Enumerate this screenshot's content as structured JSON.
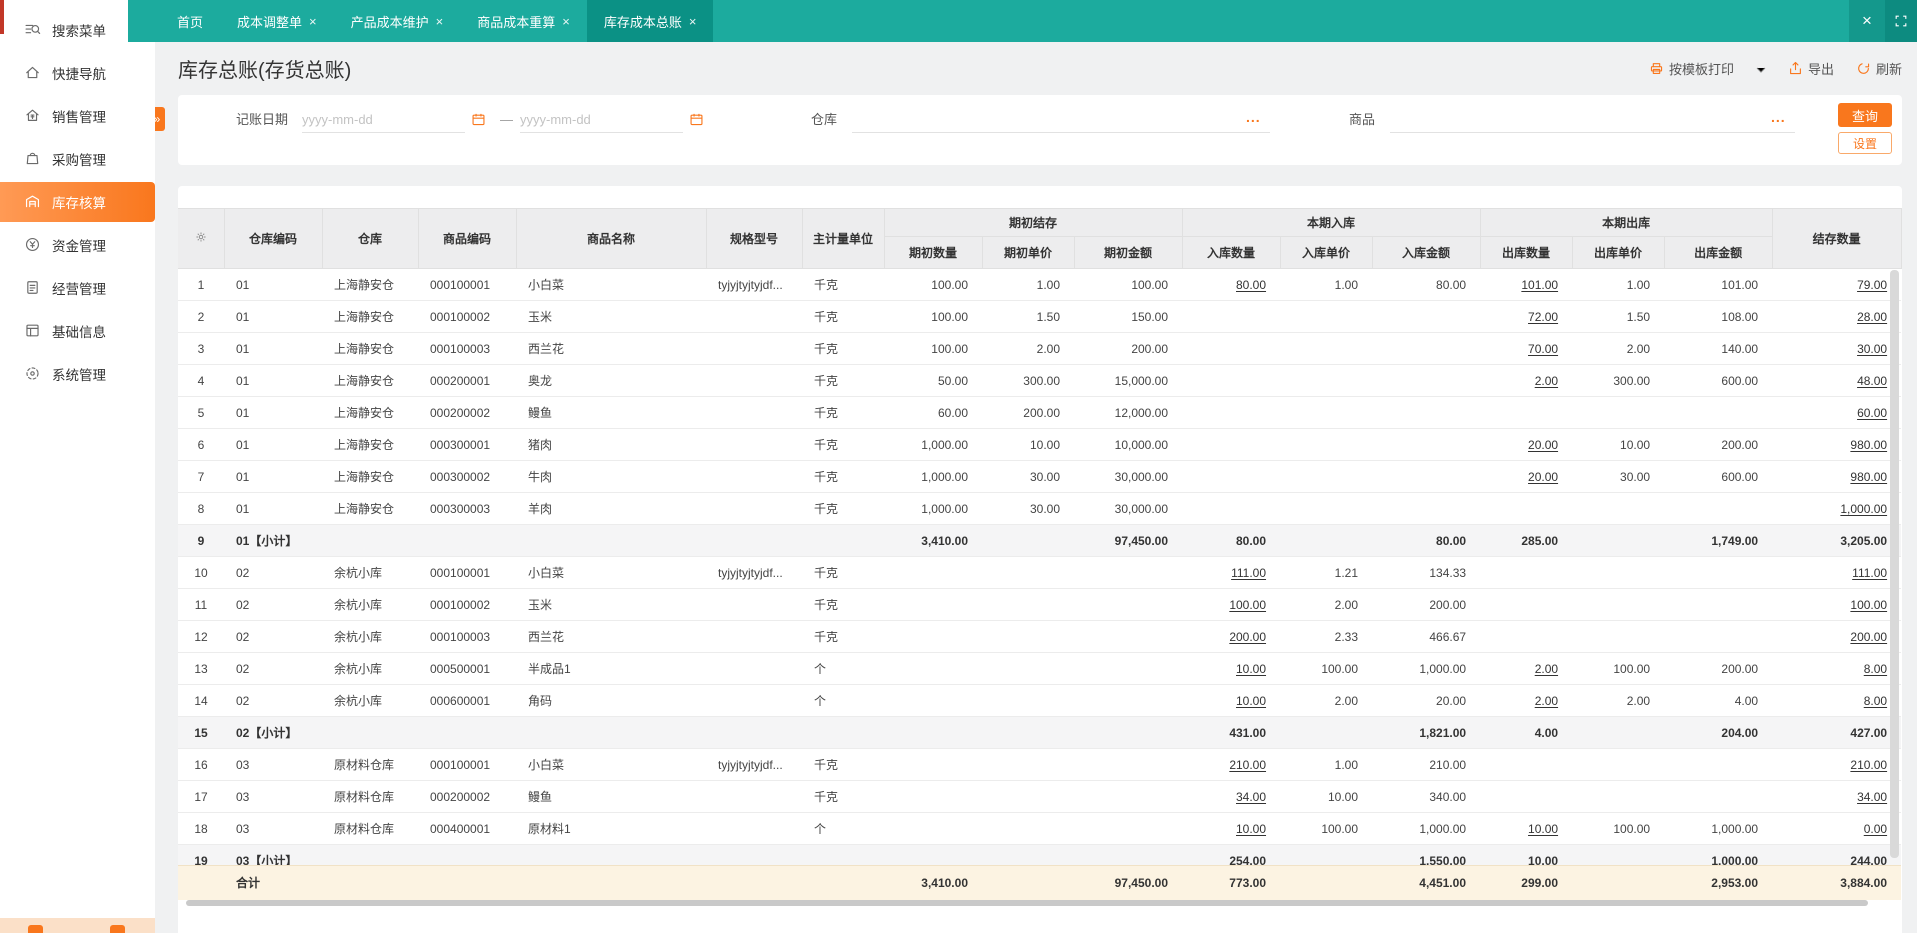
{
  "theme": {
    "teal": "#1cab9e",
    "teal_active": "#0b9185",
    "orange": "#f9771d",
    "total_row_bg": "#fcf3e2"
  },
  "window": {
    "close_icon": "×",
    "expand_icon": "fullscreen"
  },
  "tabs": {
    "items": [
      {
        "key": "home",
        "label": "首页",
        "closable": false,
        "active": false
      },
      {
        "key": "cost-adjustment",
        "label": "成本调整单",
        "closable": true,
        "active": false
      },
      {
        "key": "product-cost-maintenance",
        "label": "产品成本维护",
        "closable": true,
        "active": false
      },
      {
        "key": "product-cost-recalc",
        "label": "商品成本重算",
        "closable": true,
        "active": false
      },
      {
        "key": "inventory-cost-ledger",
        "label": "库存成本总账",
        "closable": true,
        "active": true
      }
    ]
  },
  "sidebar": {
    "items": [
      {
        "key": "search-menu",
        "icon": "search",
        "label": "搜索菜单",
        "active": false
      },
      {
        "key": "quick-nav",
        "icon": "home",
        "label": "快捷导航",
        "active": false
      },
      {
        "key": "sales-mgmt",
        "icon": "sales",
        "label": "销售管理",
        "active": false
      },
      {
        "key": "purchase-mgmt",
        "icon": "purchase",
        "label": "采购管理",
        "active": false
      },
      {
        "key": "inventory-accounting",
        "icon": "inventory",
        "label": "库存核算",
        "active": true
      },
      {
        "key": "funds-mgmt",
        "icon": "funds",
        "label": "资金管理",
        "active": false
      },
      {
        "key": "operations-mgmt",
        "icon": "operations",
        "label": "经营管理",
        "active": false
      },
      {
        "key": "basic-info",
        "icon": "basic",
        "label": "基础信息",
        "active": false
      },
      {
        "key": "system-mgmt",
        "icon": "system",
        "label": "系统管理",
        "active": false
      }
    ]
  },
  "page": {
    "title": "库存总账(存货总账)"
  },
  "toolbar": {
    "print_label": "按模板打印",
    "export_label": "导出",
    "refresh_label": "刷新"
  },
  "filters": {
    "date_label": "记账日期",
    "date_placeholder": "yyyy-mm-dd",
    "separator": "—",
    "warehouse_label": "仓库",
    "product_label": "商品",
    "ellipsis": "...",
    "query_label": "查询",
    "settings_label": "设置"
  },
  "table": {
    "header": {
      "simple": [
        "仓库编码",
        "仓库",
        "商品编码",
        "商品名称",
        "规格型号",
        "主计量单位"
      ],
      "groups": [
        {
          "label": "期初结存",
          "children": [
            "期初数量",
            "期初单价",
            "期初金额"
          ]
        },
        {
          "label": "本期入库",
          "children": [
            "入库数量",
            "入库单价",
            "入库金额"
          ]
        },
        {
          "label": "本期出库",
          "children": [
            "出库数量",
            "出库单价",
            "出库金额"
          ]
        }
      ],
      "last": "结存数量"
    },
    "rows": [
      {
        "no": "1",
        "type": "data",
        "cells": [
          "01",
          "上海静安仓",
          "000100001",
          "小白菜",
          "tyjyjtyjtyjdf...",
          "千克",
          "100.00",
          "1.00",
          "100.00",
          "80.00",
          "1.00",
          "80.00",
          "101.00",
          "1.00",
          "101.00",
          "79.00"
        ]
      },
      {
        "no": "2",
        "type": "data",
        "cells": [
          "01",
          "上海静安仓",
          "000100002",
          "玉米",
          "",
          "千克",
          "100.00",
          "1.50",
          "150.00",
          "",
          "",
          "",
          "72.00",
          "1.50",
          "108.00",
          "28.00"
        ]
      },
      {
        "no": "3",
        "type": "data",
        "cells": [
          "01",
          "上海静安仓",
          "000100003",
          "西兰花",
          "",
          "千克",
          "100.00",
          "2.00",
          "200.00",
          "",
          "",
          "",
          "70.00",
          "2.00",
          "140.00",
          "30.00"
        ]
      },
      {
        "no": "4",
        "type": "data",
        "cells": [
          "01",
          "上海静安仓",
          "000200001",
          "奥龙",
          "",
          "千克",
          "50.00",
          "300.00",
          "15,000.00",
          "",
          "",
          "",
          "2.00",
          "300.00",
          "600.00",
          "48.00"
        ]
      },
      {
        "no": "5",
        "type": "data",
        "cells": [
          "01",
          "上海静安仓",
          "000200002",
          "鳗鱼",
          "",
          "千克",
          "60.00",
          "200.00",
          "12,000.00",
          "",
          "",
          "",
          "",
          "",
          "",
          "60.00"
        ]
      },
      {
        "no": "6",
        "type": "data",
        "cells": [
          "01",
          "上海静安仓",
          "000300001",
          "猪肉",
          "",
          "千克",
          "1,000.00",
          "10.00",
          "10,000.00",
          "",
          "",
          "",
          "20.00",
          "10.00",
          "200.00",
          "980.00"
        ]
      },
      {
        "no": "7",
        "type": "data",
        "cells": [
          "01",
          "上海静安仓",
          "000300002",
          "牛肉",
          "",
          "千克",
          "1,000.00",
          "30.00",
          "30,000.00",
          "",
          "",
          "",
          "20.00",
          "30.00",
          "600.00",
          "980.00"
        ]
      },
      {
        "no": "8",
        "type": "data",
        "cells": [
          "01",
          "上海静安仓",
          "000300003",
          "羊肉",
          "",
          "千克",
          "1,000.00",
          "30.00",
          "30,000.00",
          "",
          "",
          "",
          "",
          "",
          "",
          "1,000.00"
        ]
      },
      {
        "no": "9",
        "type": "subtotal",
        "cells": [
          "01【小计】",
          "",
          "",
          "",
          "",
          "",
          "3,410.00",
          "",
          "97,450.00",
          "80.00",
          "",
          "80.00",
          "285.00",
          "",
          "1,749.00",
          "3,205.00"
        ]
      },
      {
        "no": "10",
        "type": "data",
        "cells": [
          "02",
          "余杭小库",
          "000100001",
          "小白菜",
          "tyjyjtyjtyjdf...",
          "千克",
          "",
          "",
          "",
          "111.00",
          "1.21",
          "134.33",
          "",
          "",
          "",
          "111.00"
        ]
      },
      {
        "no": "11",
        "type": "data",
        "cells": [
          "02",
          "余杭小库",
          "000100002",
          "玉米",
          "",
          "千克",
          "",
          "",
          "",
          "100.00",
          "2.00",
          "200.00",
          "",
          "",
          "",
          "100.00"
        ]
      },
      {
        "no": "12",
        "type": "data",
        "cells": [
          "02",
          "余杭小库",
          "000100003",
          "西兰花",
          "",
          "千克",
          "",
          "",
          "",
          "200.00",
          "2.33",
          "466.67",
          "",
          "",
          "",
          "200.00"
        ]
      },
      {
        "no": "13",
        "type": "data",
        "cells": [
          "02",
          "余杭小库",
          "000500001",
          "半成品1",
          "",
          "个",
          "",
          "",
          "",
          "10.00",
          "100.00",
          "1,000.00",
          "2.00",
          "100.00",
          "200.00",
          "8.00"
        ]
      },
      {
        "no": "14",
        "type": "data",
        "cells": [
          "02",
          "余杭小库",
          "000600001",
          "角码",
          "",
          "个",
          "",
          "",
          "",
          "10.00",
          "2.00",
          "20.00",
          "2.00",
          "2.00",
          "4.00",
          "8.00"
        ]
      },
      {
        "no": "15",
        "type": "subtotal",
        "cells": [
          "02【小计】",
          "",
          "",
          "",
          "",
          "",
          "",
          "",
          "",
          "431.00",
          "",
          "1,821.00",
          "4.00",
          "",
          "204.00",
          "427.00"
        ]
      },
      {
        "no": "16",
        "type": "data",
        "cells": [
          "03",
          "原材料仓库",
          "000100001",
          "小白菜",
          "tyjyjtyjtyjdf...",
          "千克",
          "",
          "",
          "",
          "210.00",
          "1.00",
          "210.00",
          "",
          "",
          "",
          "210.00"
        ]
      },
      {
        "no": "17",
        "type": "data",
        "cells": [
          "03",
          "原材料仓库",
          "000200002",
          "鳗鱼",
          "",
          "千克",
          "",
          "",
          "",
          "34.00",
          "10.00",
          "340.00",
          "",
          "",
          "",
          "34.00"
        ]
      },
      {
        "no": "18",
        "type": "data",
        "cells": [
          "03",
          "原材料仓库",
          "000400001",
          "原材料1",
          "",
          "个",
          "",
          "",
          "",
          "10.00",
          "100.00",
          "1,000.00",
          "10.00",
          "100.00",
          "1,000.00",
          "0.00"
        ]
      },
      {
        "no": "19",
        "type": "subtotal",
        "cells": [
          "03【小计】",
          "",
          "",
          "",
          "",
          "",
          "",
          "",
          "",
          "254.00",
          "",
          "1,550.00",
          "10.00",
          "",
          "1,000.00",
          "244.00"
        ]
      }
    ],
    "footer": {
      "cells": [
        "合计",
        "",
        "",
        "",
        "",
        "",
        "3,410.00",
        "",
        "97,450.00",
        "773.00",
        "",
        "4,451.00",
        "299.00",
        "",
        "2,953.00",
        "3,884.00"
      ]
    }
  }
}
